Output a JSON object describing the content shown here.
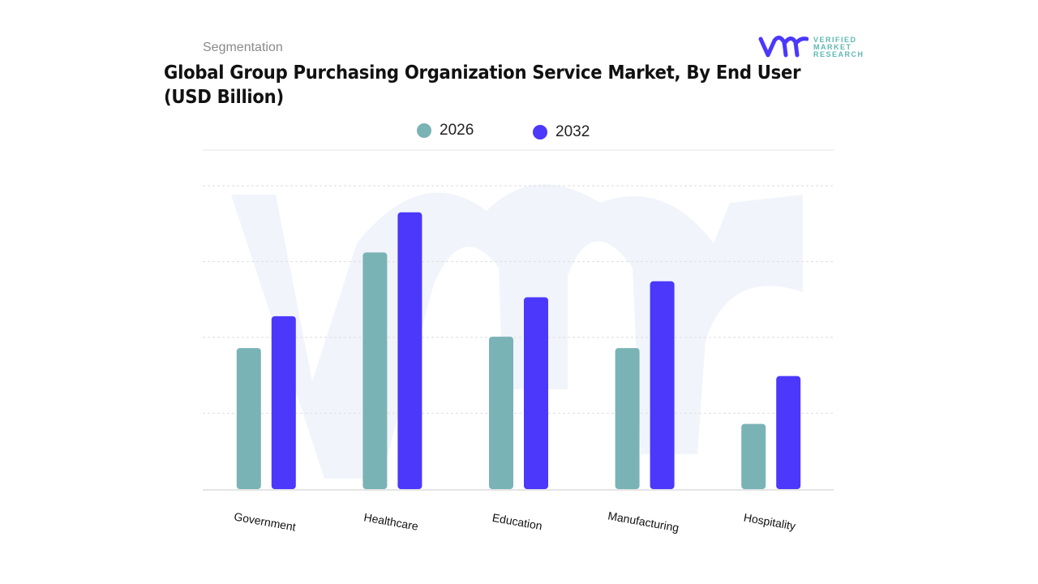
{
  "header": {
    "segment_label": "Segmentation",
    "title_line1": "Global Group Purchasing Organization Service Market, By End User",
    "title_line2": "(USD Billion)",
    "logo_text": [
      "VERIFIED",
      "MARKET",
      "RESEARCH"
    ]
  },
  "colors": {
    "2026": "#7ab3b6",
    "2032": "#4b38fb",
    "watermark": "#eef1fa"
  },
  "chart_data": {
    "type": "bar",
    "title": "Global Group Purchasing Organization Service Market, By End User (USD Billion)",
    "categories": [
      "Government",
      "Healthcare",
      "Education",
      "Manufacturing",
      "Hospitality"
    ],
    "series": [
      {
        "name": "2026",
        "values": [
          1.86,
          3.12,
          2.01,
          1.86,
          0.86
        ]
      },
      {
        "name": "2032",
        "values": [
          2.28,
          3.65,
          2.53,
          2.74,
          1.49
        ]
      }
    ],
    "ylim": [
      0,
      4
    ],
    "grid": true,
    "y_tick_labels_shown": false,
    "legend_position": "top-center"
  }
}
